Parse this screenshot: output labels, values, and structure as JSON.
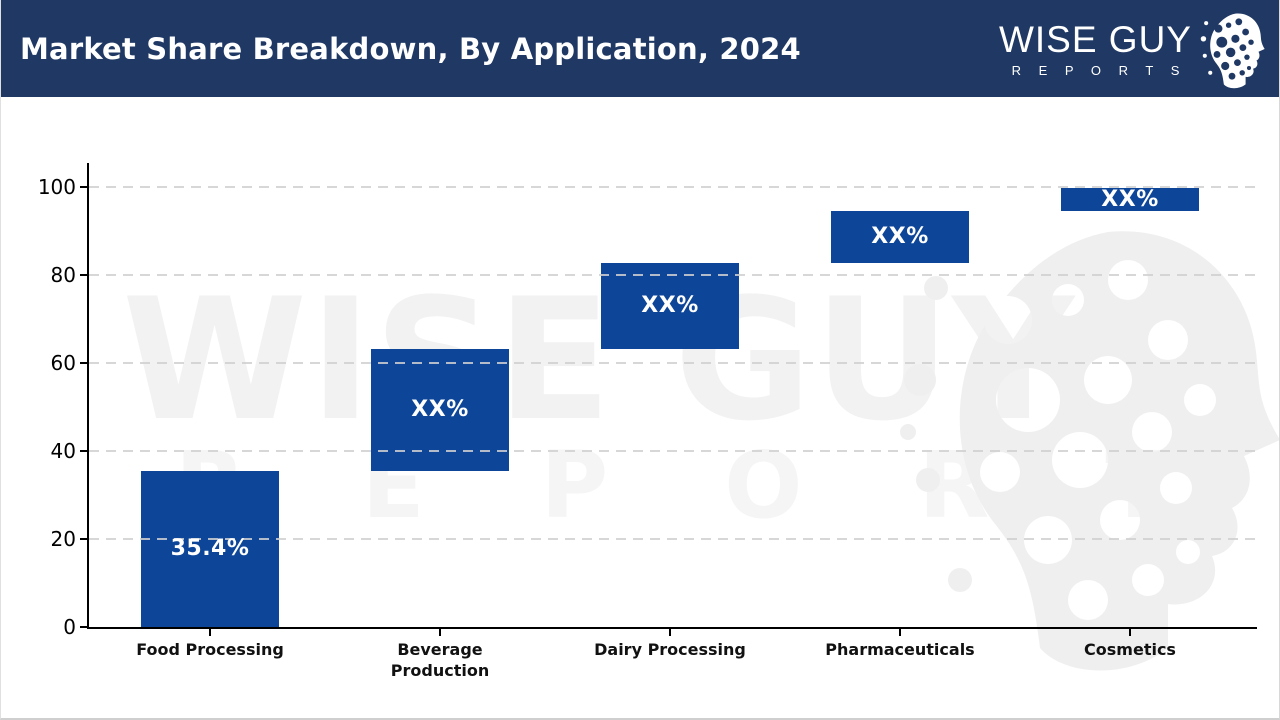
{
  "header": {
    "title": "Market Share Breakdown, By Application, 2024",
    "logo": {
      "line1": "WISE GUY",
      "line2": "R E P O R T S"
    }
  },
  "watermark": {
    "line1": "WISE GUY",
    "line2": "R E P O R T S"
  },
  "colors": {
    "header_bg": "#1f3864",
    "bar": "#0d4699",
    "bar_label": "#ffffff",
    "gridline": "#d0d0d0",
    "axis": "#000000",
    "watermark": "#f2f2f2"
  },
  "chart_data": {
    "type": "bar",
    "subtype": "waterfall",
    "title": "Market Share Breakdown, By Application, 2024",
    "categories": [
      "Food Processing",
      "Beverage\nProduction",
      "Dairy Processing",
      "Pharmaceuticals",
      "Cosmetics"
    ],
    "bars": [
      {
        "category": "Food Processing",
        "start": 0,
        "end": 35.4,
        "label": "35.4%"
      },
      {
        "category": "Beverage Production",
        "start": 35.4,
        "end": 63.2,
        "label": "XX%"
      },
      {
        "category": "Dairy Processing",
        "start": 63.2,
        "end": 82.8,
        "label": "XX%"
      },
      {
        "category": "Pharmaceuticals",
        "start": 82.8,
        "end": 94.5,
        "label": "XX%"
      },
      {
        "category": "Cosmetics",
        "start": 94.5,
        "end": 99.8,
        "label": "XX%"
      }
    ],
    "xlabel": "",
    "ylabel": "",
    "ylim": [
      0,
      100
    ],
    "yticks": [
      0,
      20,
      40,
      60,
      80,
      100
    ],
    "grid": "horizontal-dashed",
    "legend": "none",
    "bar_color": "#0d4699",
    "label_color": "#ffffff"
  }
}
